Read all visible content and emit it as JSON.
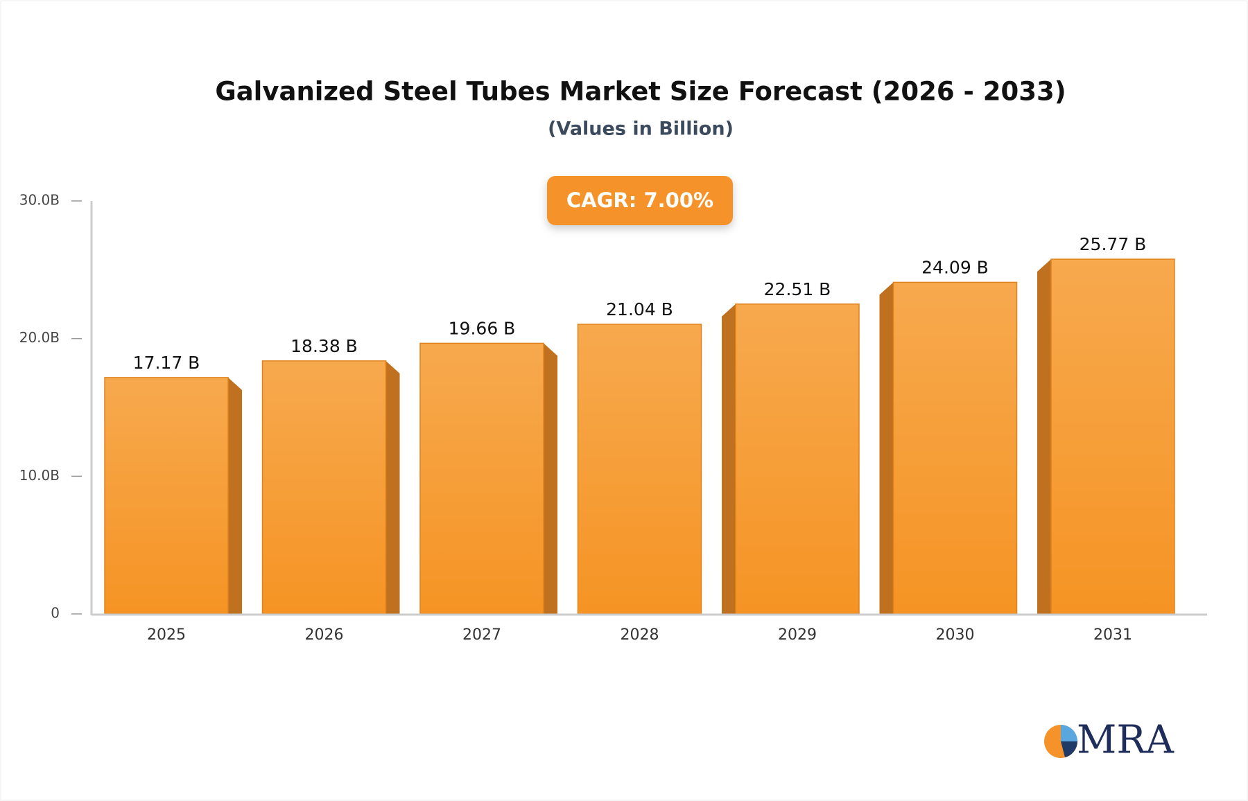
{
  "chart_data": {
    "type": "bar",
    "title": "Galvanized Steel Tubes Market Size Forecast (2026 - 2033)",
    "subtitle": "(Values in Billion)",
    "annotation": "CAGR: 7.00%",
    "categories": [
      "2025",
      "2026",
      "2027",
      "2028",
      "2029",
      "2030",
      "2031"
    ],
    "values": [
      17.17,
      18.38,
      19.66,
      21.04,
      22.51,
      24.09,
      25.77
    ],
    "value_labels": [
      "17.17 B",
      "18.38 B",
      "19.66 B",
      "21.04 B",
      "22.51 B",
      "24.09 B",
      "25.77 B"
    ],
    "color": "#f5a040",
    "ylim": [
      0,
      30
    ],
    "yticks": [
      0,
      {
        "value": 10,
        "label": "10.0B"
      },
      {
        "value": 20,
        "label": "20.0B"
      },
      {
        "value": 30,
        "label": "30.0B"
      }
    ],
    "grid": false
  },
  "logo": "MRA"
}
